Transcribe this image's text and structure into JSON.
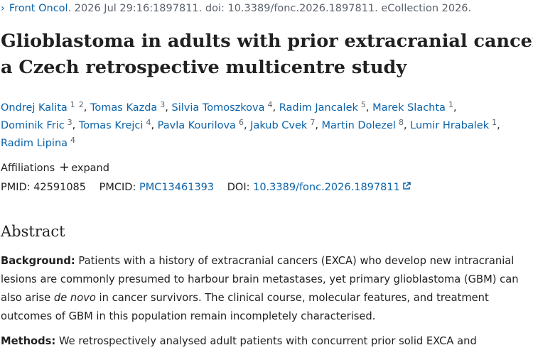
{
  "citation": {
    "journal": "Front Oncol",
    "details": ". 2026 Jul 29:16:1897811. doi: 10.3389/fonc.2026.1897811. eCollection 2026."
  },
  "title_lines": [
    "Glioblastoma in adults with prior extracranial cancer:",
    "a Czech retrospective multicentre study"
  ],
  "authors": {
    "separator": ",",
    "list": [
      {
        "name": "Ondrej Kalita",
        "affils": [
          "1",
          "2"
        ]
      },
      {
        "name": "Tomas Kazda",
        "affils": [
          "3"
        ]
      },
      {
        "name": "Silvia Tomoszkova",
        "affils": [
          "4"
        ]
      },
      {
        "name": "Radim Jancalek",
        "affils": [
          "5"
        ]
      },
      {
        "name": "Marek Slachta",
        "affils": [
          "1"
        ]
      },
      {
        "name": "Dominik Fric",
        "affils": [
          "3"
        ]
      },
      {
        "name": "Tomas Krejci",
        "affils": [
          "4"
        ]
      },
      {
        "name": "Pavla Kourilova",
        "affils": [
          "6"
        ]
      },
      {
        "name": "Jakub Cvek",
        "affils": [
          "7"
        ]
      },
      {
        "name": "Martin Dolezel",
        "affils": [
          "8"
        ]
      },
      {
        "name": "Lumir Hrabalek",
        "affils": [
          "1"
        ]
      },
      {
        "name": "Radim Lipina",
        "affils": [
          "4"
        ]
      }
    ]
  },
  "affiliations": {
    "label": "Affiliations",
    "toggle": "expand"
  },
  "identifiers": {
    "pmid_label": "PMID:",
    "pmid": "42591085",
    "pmcid_label": "PMCID:",
    "pmcid": "PMC13461393",
    "doi_label": "DOI:",
    "doi": "10.3389/fonc.2026.1897811"
  },
  "abstract": {
    "heading": "Abstract",
    "background": {
      "label": "Background:",
      "text_before": " Patients with a history of extracranial cancers (EXCA) who develop new intracranial lesions are commonly presumed to harbour brain metastases, yet primary glioblastoma (GBM) can also arise ",
      "emphasis": "de novo",
      "text_after": " in cancer survivors. The clinical course, molecular features, and treatment outcomes of GBM in this population remain incompletely characterised."
    },
    "methods": {
      "label": "Methods:",
      "text": " We retrospectively analysed adult patients with concurrent prior solid EXCA and"
    }
  }
}
